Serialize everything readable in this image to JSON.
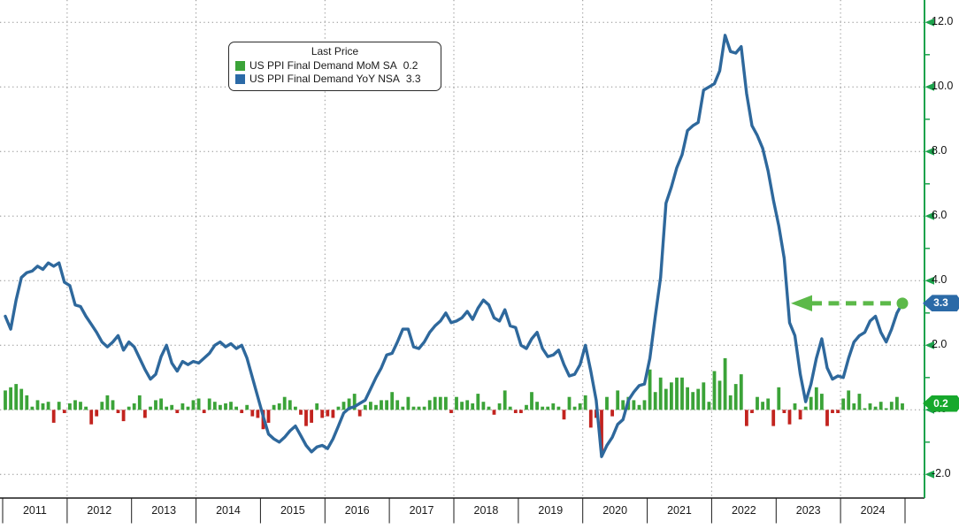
{
  "chart": {
    "legend": {
      "title": "Last Price",
      "entries": [
        {
          "label": "US PPI Final Demand MoM SA",
          "value": "0.2",
          "color": "#3ba338"
        },
        {
          "label": "US PPI Final Demand YoY NSA",
          "value": "3.3",
          "color": "#2b6aa7"
        }
      ]
    },
    "y_axis": {
      "major_ticks": [
        {
          "value": 12,
          "label": "12.0"
        },
        {
          "value": 10,
          "label": "10.0"
        },
        {
          "value": 8,
          "label": "8.0"
        },
        {
          "value": 6,
          "label": "6.0"
        },
        {
          "value": 4,
          "label": "4.0"
        },
        {
          "value": 2,
          "label": "2.0"
        },
        {
          "value": 0,
          "label": "0.0"
        },
        {
          "value": -2,
          "label": "-2.0"
        }
      ],
      "minor_tick_values": [
        11,
        9,
        7,
        5,
        3,
        1,
        -1
      ],
      "axis_color": "#1ca24c",
      "badges": [
        {
          "value": 3.3,
          "label": "3.3",
          "color": "#2b6aa7"
        },
        {
          "value": 0.2,
          "label": "0.2",
          "color": "#16a82c"
        }
      ]
    },
    "x_axis": {
      "years": [
        "2011",
        "2012",
        "2013",
        "2014",
        "2015",
        "2016",
        "2017",
        "2018",
        "2019",
        "2020",
        "2021",
        "2022",
        "2023",
        "2024"
      ]
    },
    "annotation": {
      "type": "dashed-arrow",
      "at_value": 3.3,
      "direction": "left",
      "color": "#5cb949"
    },
    "grid_color": "#909090"
  },
  "chart_data": {
    "type": "line+bar",
    "x_start": "2011-01",
    "x_end": "2024-12",
    "frequency": "monthly",
    "ylim": [
      -2.7,
      12.7
    ],
    "y_major_step": 2,
    "grid": "dotted",
    "legend_position": "top-left-inside",
    "series": [
      {
        "name": "US PPI Final Demand MoM SA",
        "type": "bar",
        "last_value": 0.2,
        "color_pos": "#3ba338",
        "color_neg": "#c2231e",
        "values": [
          0.6,
          0.7,
          0.8,
          0.65,
          0.45,
          0.1,
          0.3,
          0.2,
          0.25,
          -0.4,
          0.25,
          -0.1,
          0.2,
          0.3,
          0.25,
          0.1,
          -0.45,
          -0.2,
          0.25,
          0.45,
          0.3,
          -0.1,
          -0.35,
          0.1,
          0.2,
          0.45,
          -0.25,
          0.1,
          0.3,
          0.35,
          0.1,
          0.15,
          -0.1,
          0.2,
          0.1,
          0.3,
          0.35,
          -0.1,
          0.35,
          0.25,
          0.15,
          0.2,
          0.25,
          0.1,
          -0.1,
          0.15,
          -0.2,
          -0.25,
          -0.6,
          -0.4,
          0.15,
          0.2,
          0.4,
          0.3,
          0.1,
          -0.15,
          -0.5,
          -0.4,
          0.2,
          -0.25,
          -0.2,
          -0.25,
          0.1,
          0.25,
          0.35,
          0.5,
          -0.2,
          0.15,
          0.25,
          0.15,
          0.3,
          0.3,
          0.55,
          0.3,
          0.1,
          0.4,
          0.1,
          0.1,
          0.1,
          0.3,
          0.4,
          0.4,
          0.4,
          -0.1,
          0.4,
          0.25,
          0.3,
          0.2,
          0.5,
          0.25,
          0.1,
          -0.15,
          0.2,
          0.6,
          0.1,
          -0.1,
          -0.1,
          0.15,
          0.55,
          0.25,
          0.1,
          0.1,
          0.2,
          0.1,
          -0.3,
          0.4,
          0.1,
          0.2,
          0.45,
          -0.55,
          -0.25,
          -1.3,
          0.4,
          -0.2,
          0.6,
          0.3,
          0.4,
          0.3,
          0.15,
          0.3,
          1.25,
          0.55,
          1.0,
          0.65,
          0.85,
          1.0,
          1.0,
          0.7,
          0.55,
          0.65,
          0.85,
          0.25,
          1.2,
          0.9,
          1.6,
          0.45,
          0.8,
          1.1,
          -0.5,
          -0.1,
          0.4,
          0.25,
          0.35,
          -0.5,
          0.7,
          -0.1,
          -0.45,
          0.2,
          -0.3,
          0.1,
          0.4,
          0.7,
          0.5,
          -0.5,
          -0.1,
          -0.1,
          0.35,
          0.6,
          0.2,
          0.5,
          0.05,
          0.2,
          0.1,
          0.25,
          0.05,
          0.25,
          0.4,
          0.2
        ]
      },
      {
        "name": "US PPI Final Demand YoY NSA",
        "type": "line",
        "last_value": 3.3,
        "color": "#2e689c",
        "values": [
          2.9,
          2.5,
          3.4,
          4.1,
          4.25,
          4.3,
          4.45,
          4.35,
          4.55,
          4.45,
          4.55,
          3.95,
          3.85,
          3.25,
          3.2,
          2.9,
          2.65,
          2.4,
          2.1,
          1.95,
          2.1,
          2.3,
          1.85,
          2.1,
          1.95,
          1.6,
          1.25,
          0.95,
          1.1,
          1.65,
          2.0,
          1.45,
          1.2,
          1.5,
          1.4,
          1.5,
          1.45,
          1.6,
          1.75,
          2.0,
          2.1,
          1.95,
          2.05,
          1.9,
          2.0,
          1.6,
          1.0,
          0.4,
          -0.2,
          -0.75,
          -0.9,
          -1.0,
          -0.85,
          -0.65,
          -0.5,
          -0.8,
          -1.1,
          -1.3,
          -1.15,
          -1.1,
          -1.2,
          -0.9,
          -0.5,
          -0.1,
          0.05,
          0.1,
          0.2,
          0.3,
          0.65,
          1.0,
          1.3,
          1.7,
          1.75,
          2.1,
          2.5,
          2.5,
          1.95,
          1.9,
          2.1,
          2.4,
          2.6,
          2.75,
          3.0,
          2.7,
          2.75,
          2.85,
          3.05,
          2.8,
          3.15,
          3.4,
          3.25,
          2.85,
          2.75,
          3.1,
          2.6,
          2.55,
          2.0,
          1.9,
          2.2,
          2.4,
          1.9,
          1.65,
          1.7,
          1.85,
          1.4,
          1.05,
          1.1,
          1.4,
          2.0,
          1.2,
          0.3,
          -1.45,
          -1.1,
          -0.85,
          -0.45,
          -0.3,
          0.3,
          0.55,
          0.75,
          0.8,
          1.6,
          2.9,
          4.1,
          6.4,
          6.9,
          7.5,
          7.9,
          8.65,
          8.8,
          8.9,
          9.9,
          10.0,
          10.1,
          10.5,
          11.6,
          11.1,
          11.05,
          11.25,
          9.8,
          8.8,
          8.5,
          8.1,
          7.4,
          6.5,
          5.7,
          4.7,
          2.7,
          2.3,
          1.1,
          0.25,
          0.8,
          1.6,
          2.2,
          1.3,
          0.95,
          1.05,
          1.0,
          1.6,
          2.1,
          2.3,
          2.4,
          2.75,
          2.9,
          2.4,
          2.1,
          2.5,
          3.0,
          3.3
        ]
      }
    ]
  }
}
